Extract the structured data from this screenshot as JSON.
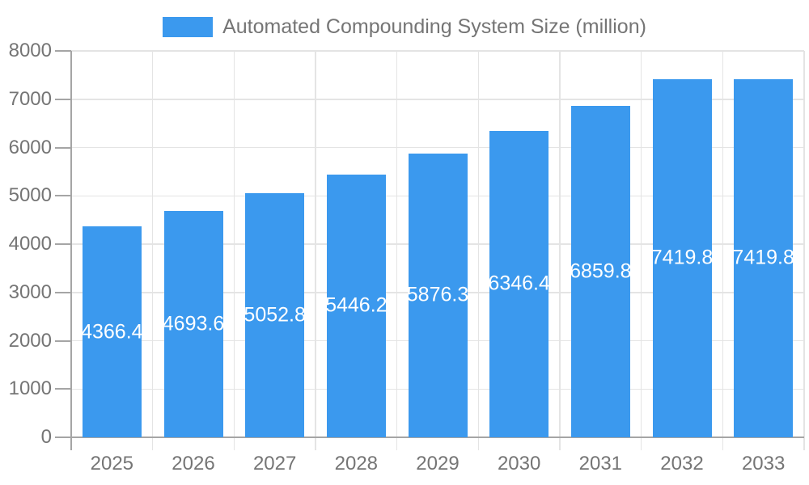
{
  "legend": {
    "label": "Automated Compounding System Size (million)"
  },
  "chart_data": {
    "type": "bar",
    "title": "",
    "xlabel": "",
    "ylabel": "",
    "legend_position": "top",
    "grid": true,
    "categories": [
      "2025",
      "2026",
      "2027",
      "2028",
      "2029",
      "2030",
      "2031",
      "2032",
      "2033"
    ],
    "series": [
      {
        "name": "Automated Compounding System Size (million)",
        "values": [
          4366.4,
          4693.6,
          5052.8,
          5446.2,
          5876.3,
          6346.4,
          6859.8,
          7419.8,
          7419.8
        ]
      }
    ],
    "value_labels": [
      "4366.4",
      "4693.6",
      "5052.8",
      "5446.2",
      "5876.3",
      "6346.4",
      "6859.8",
      "7419.8",
      "7419.8"
    ],
    "ylim": [
      0,
      8000
    ],
    "y_ticks": [
      0,
      1000,
      2000,
      3000,
      4000,
      5000,
      6000,
      7000,
      8000
    ],
    "y_tick_labels": [
      "0",
      "1000",
      "2000",
      "3000",
      "4000",
      "5000",
      "6000",
      "7000",
      "8000"
    ],
    "colors": {
      "bar": "#3B99EE",
      "text": "#757575",
      "bar_label": "#FFFFFF",
      "grid": "#E4E4E4",
      "axis": "#A5A5A5",
      "background": "#FFFFFF"
    }
  }
}
